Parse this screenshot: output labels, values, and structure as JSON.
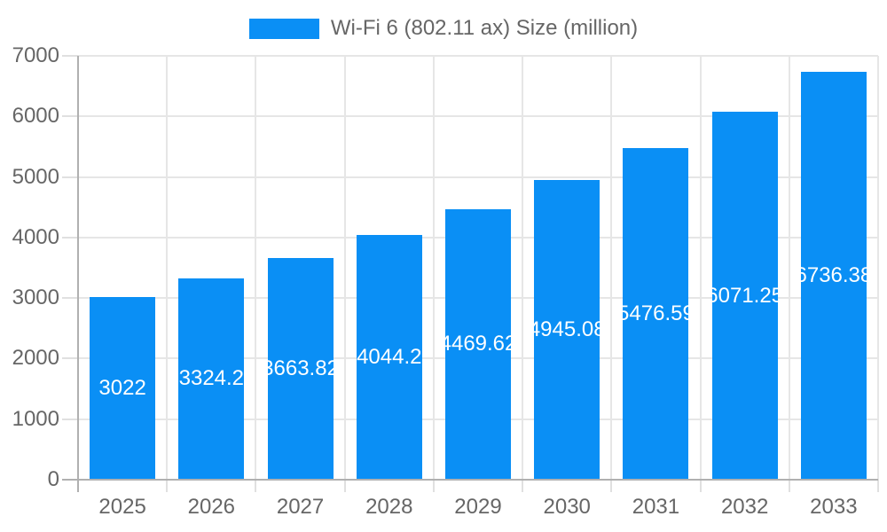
{
  "legend": {
    "label": "Wi-Fi 6 (802.11 ax) Size (million)"
  },
  "chart_data": {
    "type": "bar",
    "title": "",
    "categories": [
      "2025",
      "2026",
      "2027",
      "2028",
      "2029",
      "2030",
      "2031",
      "2032",
      "2033"
    ],
    "series": [
      {
        "name": "Wi-Fi 6 (802.11 ax) Size (million)",
        "values": [
          3022,
          3324.2,
          3663.82,
          4044.2,
          4469.62,
          4945.08,
          5476.59,
          6071.25,
          6736.38
        ]
      }
    ],
    "value_labels": [
      "3022",
      "3324.2",
      "3663.82",
      "4044.2",
      "4469.62",
      "4945.08",
      "5476.59",
      "6071.25",
      "6736.38"
    ],
    "xlabel": "",
    "ylabel": "",
    "ylim": [
      0,
      7000
    ],
    "ytick_step": 1000,
    "ytick_labels": [
      "0",
      "1000",
      "2000",
      "3000",
      "4000",
      "5000",
      "6000",
      "7000"
    ],
    "grid": true,
    "legend_position": "top",
    "colors": {
      "bar": "#0a8ff5",
      "axis_text": "#666666",
      "value_text": "#ffffff",
      "gridline": "#e6e6e6",
      "tick": "#e0e0e0",
      "axis_line": "#b0b0b0",
      "background": "#ffffff"
    }
  }
}
